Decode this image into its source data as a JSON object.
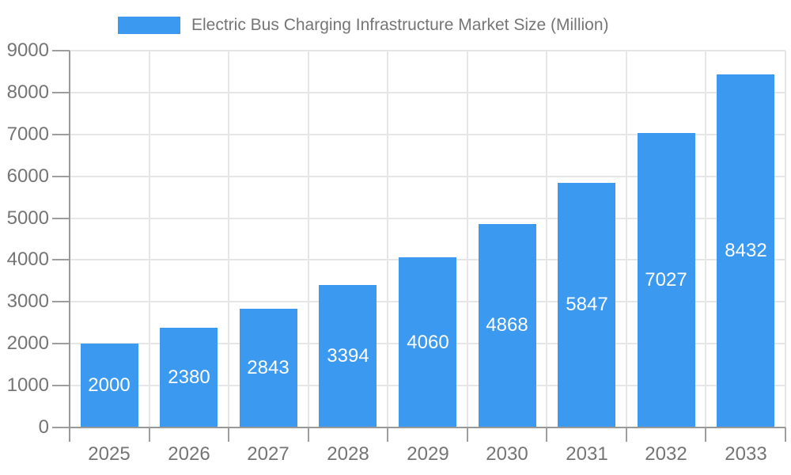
{
  "colors": {
    "bar": "#3B99F0",
    "bar_label": "#FFFFFF",
    "axis_line": "#999999",
    "tick": "#9E9E9E",
    "gridline": "#E6E6E6",
    "text": "#757575",
    "background": "#FFFFFF"
  },
  "legend": {
    "position": "top"
  },
  "chart_data": {
    "type": "bar",
    "title": "Electric Bus Charging Infrastructure Market Size (Million)",
    "categories": [
      "2025",
      "2026",
      "2027",
      "2028",
      "2029",
      "2030",
      "2031",
      "2032",
      "2033"
    ],
    "values": [
      2000,
      2380,
      2843,
      3394,
      4060,
      4868,
      5847,
      7027,
      8432
    ],
    "xlabel": "",
    "ylabel": "",
    "ylim": [
      0,
      9000
    ],
    "ytick_step": 1000,
    "yticks": [
      0,
      1000,
      2000,
      3000,
      4000,
      5000,
      6000,
      7000,
      8000,
      9000
    ],
    "grid": true,
    "bar_value_labels": "inside-center",
    "legend_position": "top"
  }
}
